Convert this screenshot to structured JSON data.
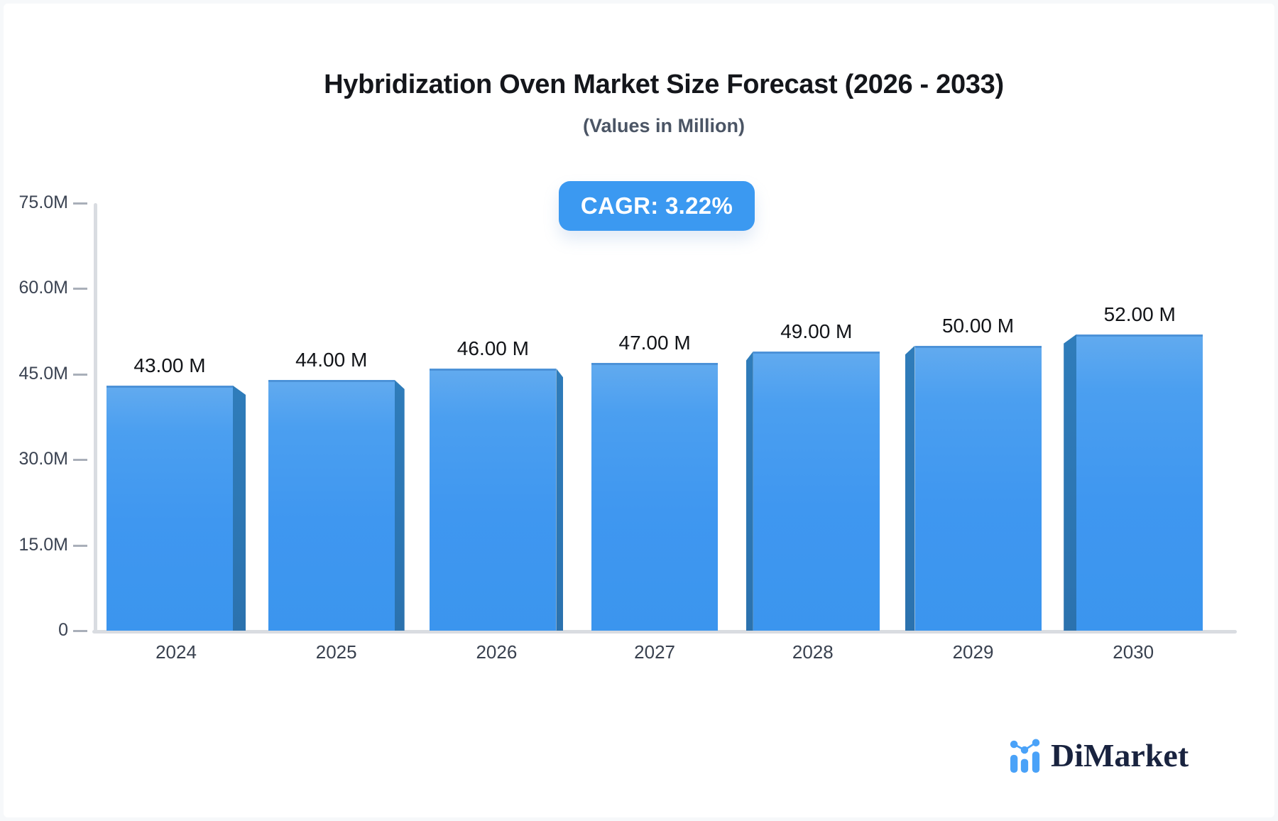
{
  "title": "Hybridization Oven Market Size Forecast (2026 - 2033)",
  "subtitle": "(Values in Million)",
  "badge": {
    "label": "CAGR: 3.22%",
    "color": "#3b99f1"
  },
  "logo": {
    "text": "DiMarket",
    "icon": "mini-bar-chart-icon",
    "text_color": "#19233f",
    "icon_color": "#4aa2f8"
  },
  "chart_data": {
    "type": "bar",
    "title": "Hybridization Oven Market Size Forecast (2026 - 2033)",
    "subtitle": "(Values in Million)",
    "categories": [
      "2024",
      "2025",
      "2026",
      "2027",
      "2028",
      "2029",
      "2030"
    ],
    "values": [
      43,
      44,
      46,
      47,
      49,
      50,
      52
    ],
    "value_labels": [
      "43.00 M",
      "44.00 M",
      "46.00 M",
      "47.00 M",
      "49.00 M",
      "50.00 M",
      "52.00 M"
    ],
    "unit": "Million",
    "xlabel": "",
    "ylabel": "",
    "ylim": [
      0,
      75
    ],
    "ytick_labels": [
      "75.0M",
      "60.0M",
      "45.0M",
      "30.0M",
      "15.0M",
      "0"
    ],
    "ytick_values": [
      75,
      60,
      45,
      30,
      15,
      0
    ],
    "grid": false,
    "legend": false,
    "bar_color": "#3f97f0",
    "bar_side_color": "#2b74b3",
    "style": "3d-perspective-bars"
  }
}
